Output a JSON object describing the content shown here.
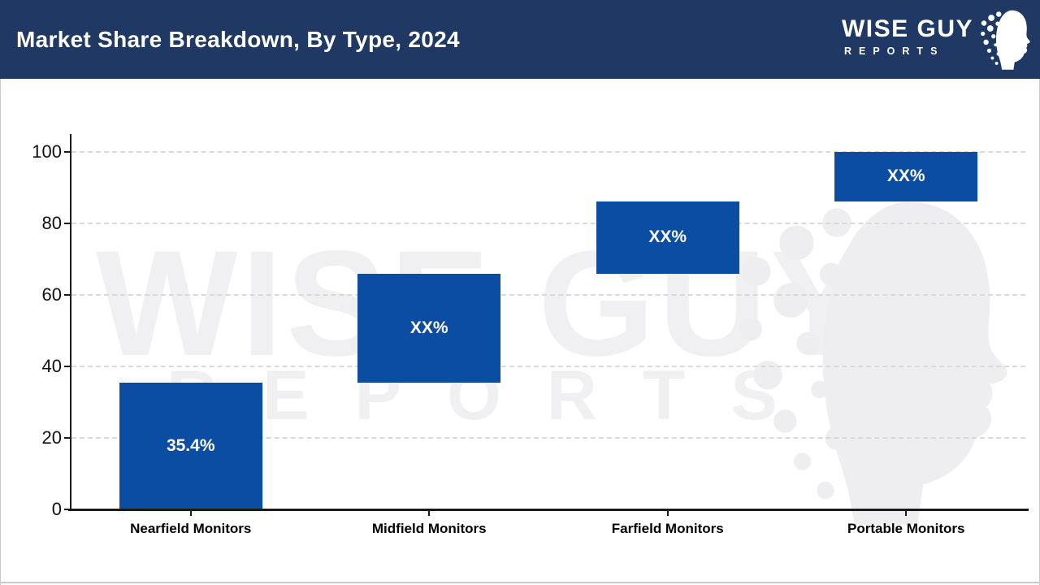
{
  "header": {
    "title": "Market Share Breakdown, By Type, 2024",
    "logo_line1": "WISE GUY",
    "logo_line2": "REPORTS"
  },
  "watermark": {
    "line1": "WISE GUY",
    "line2": "REPORTS"
  },
  "colors": {
    "header_bg": "#1f3864",
    "bar": "#0b4da2",
    "bar_label": "#ffffff",
    "grid": "#d9d9d9",
    "axis": "#1a1a1a",
    "tick_label": "#111111",
    "watermark": "#f0f0f2"
  },
  "chart_data": {
    "type": "bar",
    "variant": "waterfall",
    "title": "Market Share Breakdown, By Type, 2024",
    "xlabel": "",
    "ylabel": "",
    "categories": [
      "Nearfield Monitors",
      "Midfield Monitors",
      "Farfield Monitors",
      "Portable Monitors"
    ],
    "segments": [
      {
        "category": "Nearfield Monitors",
        "label": "35.4%",
        "start": 0,
        "end": 35.4
      },
      {
        "category": "Midfield Monitors",
        "label": "XX%",
        "start": 35.4,
        "end": 65.9
      },
      {
        "category": "Farfield Monitors",
        "label": "XX%",
        "start": 65.9,
        "end": 86.2
      },
      {
        "category": "Portable Monitors",
        "label": "XX%",
        "start": 86.2,
        "end": 100
      }
    ],
    "yticks": [
      0,
      20,
      40,
      60,
      80,
      100
    ],
    "ylim": [
      0,
      105
    ],
    "grid": "horizontal-dashed",
    "legend": "none",
    "bar_width_fraction": 0.6
  }
}
